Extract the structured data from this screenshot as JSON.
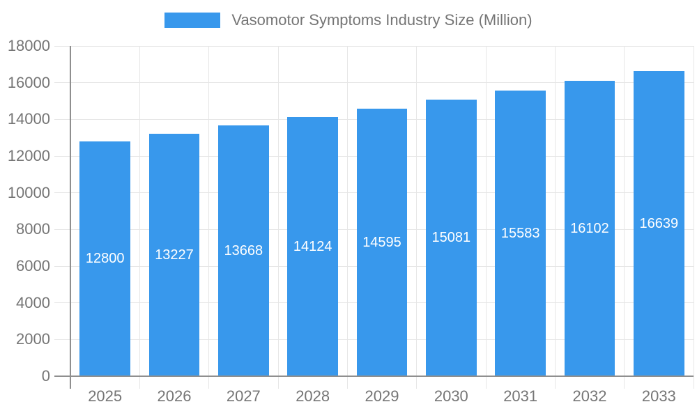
{
  "legend": {
    "label": "Vasomotor Symptoms Industry Size (Million)"
  },
  "colors": {
    "bar": "#3898EC",
    "grid": "#E6E6E6",
    "axis": "#8F8F8F",
    "text": "#757575",
    "value_label": "#FFFFFF",
    "background": "#FFFFFF"
  },
  "chart_data": {
    "type": "bar",
    "title": "Vasomotor Symptoms Industry Size (Million)",
    "categories": [
      "2025",
      "2026",
      "2027",
      "2028",
      "2029",
      "2030",
      "2031",
      "2032",
      "2033"
    ],
    "series": [
      {
        "name": "Vasomotor Symptoms Industry Size (Million)",
        "values": [
          12800,
          13227,
          13668,
          14124,
          14595,
          15081,
          15583,
          16102,
          16639
        ]
      }
    ],
    "xlabel": "",
    "ylabel": "",
    "ylim": [
      0,
      18000
    ],
    "ytick_step": 2000,
    "yticks": [
      0,
      2000,
      4000,
      6000,
      8000,
      10000,
      12000,
      14000,
      16000,
      18000
    ],
    "grid": true,
    "legend_position": "top",
    "value_labels": "inside-center"
  }
}
